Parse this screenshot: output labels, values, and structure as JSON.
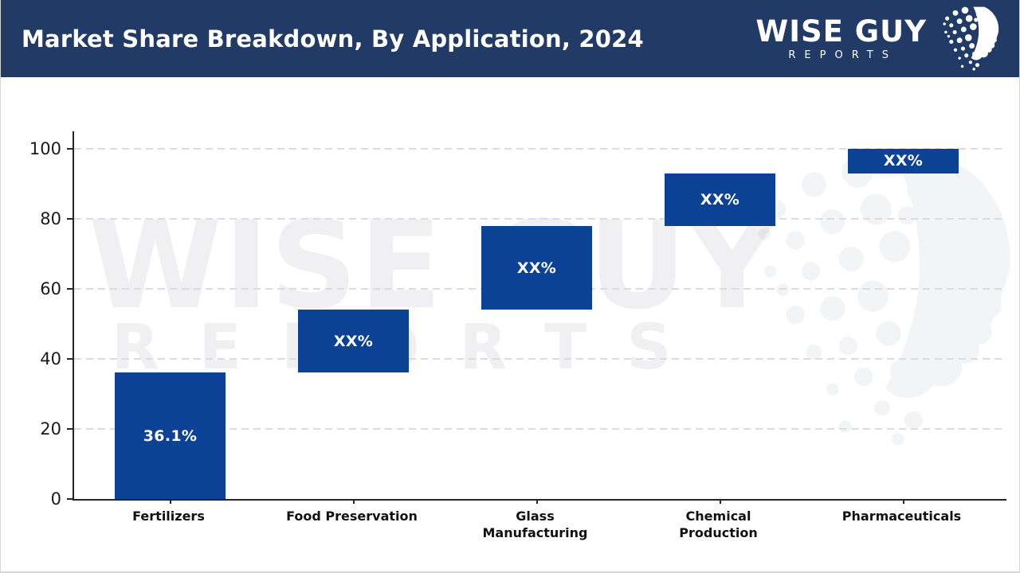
{
  "header": {
    "title": "Market Share Breakdown, By Application, 2024",
    "logo": {
      "line1": "WISE GUY",
      "line2": "REPORTS"
    }
  },
  "watermark": {
    "line1": "WISE GUY",
    "line2": "REPORTS"
  },
  "colors": {
    "header_bg": "#213a66",
    "bar": "#0b4295",
    "bar_label": "#ffffff",
    "grid": "#dcdcdc",
    "axis": "#262626",
    "watermark": "#f0f0f2"
  },
  "chart_data": {
    "type": "bar",
    "subtype": "waterfall",
    "title": "Market Share Breakdown, By Application, 2024",
    "categories": [
      [
        "Fertilizers"
      ],
      [
        "Food Preservation"
      ],
      [
        "Glass",
        "Manufacturing"
      ],
      [
        "Chemical",
        "Production"
      ],
      [
        "Pharmaceuticals"
      ]
    ],
    "segments": [
      {
        "category": "Fertilizers",
        "start": 0,
        "end": 36.1,
        "label": "36.1%"
      },
      {
        "category": "Food Preservation",
        "start": 36.1,
        "end": 54,
        "label": "XX%"
      },
      {
        "category": "Glass Manufacturing",
        "start": 54,
        "end": 78,
        "label": "XX%"
      },
      {
        "category": "Chemical Production",
        "start": 78,
        "end": 93,
        "label": "XX%"
      },
      {
        "category": "Pharmaceuticals",
        "start": 93,
        "end": 100,
        "label": "XX%"
      }
    ],
    "yticks": [
      0,
      20,
      40,
      60,
      80,
      100
    ],
    "ylim": [
      0,
      105
    ],
    "xlabel": "",
    "ylabel": "",
    "grid": true,
    "legend": false,
    "bar_color": "#0b4295",
    "bar_label_color": "#ffffff"
  }
}
